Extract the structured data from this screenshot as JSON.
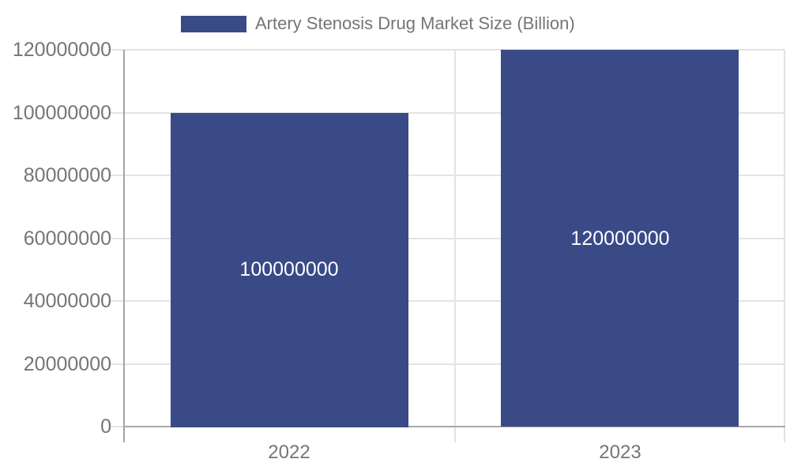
{
  "chart_data": {
    "type": "bar",
    "title": "Artery Stenosis Drug Market Size (Billion)",
    "legend_entries": [
      "Artery Stenosis Drug Market Size (Billion)"
    ],
    "legend_position": "top",
    "categories": [
      "2022",
      "2023"
    ],
    "values": [
      100000000,
      120000000
    ],
    "data_labels": [
      "100000000",
      "120000000"
    ],
    "y_ticks": [
      0,
      20000000,
      40000000,
      60000000,
      80000000,
      100000000,
      120000000
    ],
    "y_tick_labels": [
      "0",
      "20000000",
      "40000000",
      "60000000",
      "80000000",
      "100000000",
      "120000000"
    ],
    "ylim": [
      0,
      120000000
    ],
    "xlabel": "",
    "ylabel": "",
    "grid": true
  },
  "colors": {
    "bar": "#3A4A87",
    "tick_text": "#757575",
    "legend_text": "#757575",
    "bar_label_text": "#FFFFFF",
    "gridline": "#E3E3E3",
    "axis_line": "#A5A5A5",
    "baseline": "#A8A8A8",
    "background": "#FFFFFF"
  }
}
